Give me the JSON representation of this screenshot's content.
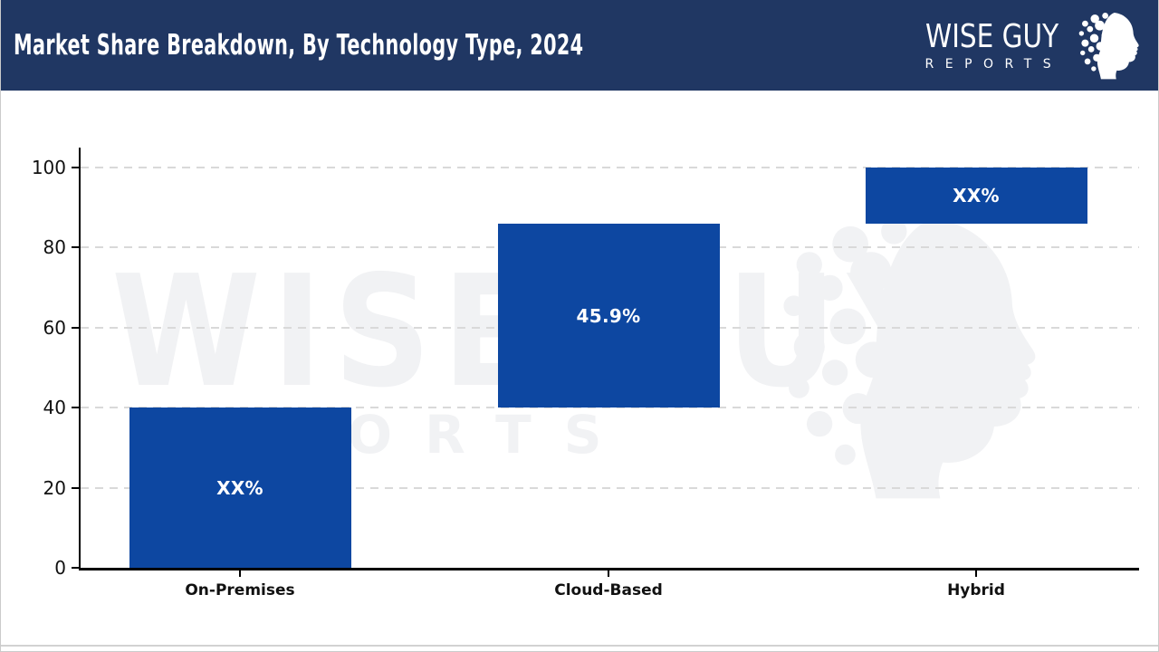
{
  "header": {
    "title": "Market Share Breakdown, By Technology Type, 2024",
    "logo": {
      "name_line": "WISE GUY",
      "sub_line": "REPORTS",
      "head_icon": "dotted-face-profile"
    }
  },
  "watermark": {
    "name_line": "WISE GUY",
    "sub_line": "REPORTS"
  },
  "chart_data": {
    "type": "bar",
    "variant": "stacked-waterfall",
    "title": "Market Share Breakdown, By Technology Type, 2024",
    "categories": [
      "On-Premises",
      "Cloud-Based",
      "Hybrid"
    ],
    "segments": [
      {
        "category": "On-Premises",
        "start": 0,
        "end": 40,
        "value_label": "XX%"
      },
      {
        "category": "Cloud-Based",
        "start": 40,
        "end": 85.9,
        "value_label": "45.9%"
      },
      {
        "category": "Hybrid",
        "start": 85.9,
        "end": 100,
        "value_label": "XX%"
      }
    ],
    "xlabel": "",
    "ylabel": "",
    "yticks": [
      0,
      20,
      40,
      60,
      80,
      100
    ],
    "ylim": [
      0,
      104.5
    ],
    "grid": "horizontal-dashed",
    "legend": "none",
    "colors": {
      "bar": "#0d47a1",
      "bar_label": "#ffffff",
      "grid": "#d9d9d9",
      "axis": "#000000",
      "header_bg": "#203763",
      "watermark": "#f1f2f4"
    }
  }
}
